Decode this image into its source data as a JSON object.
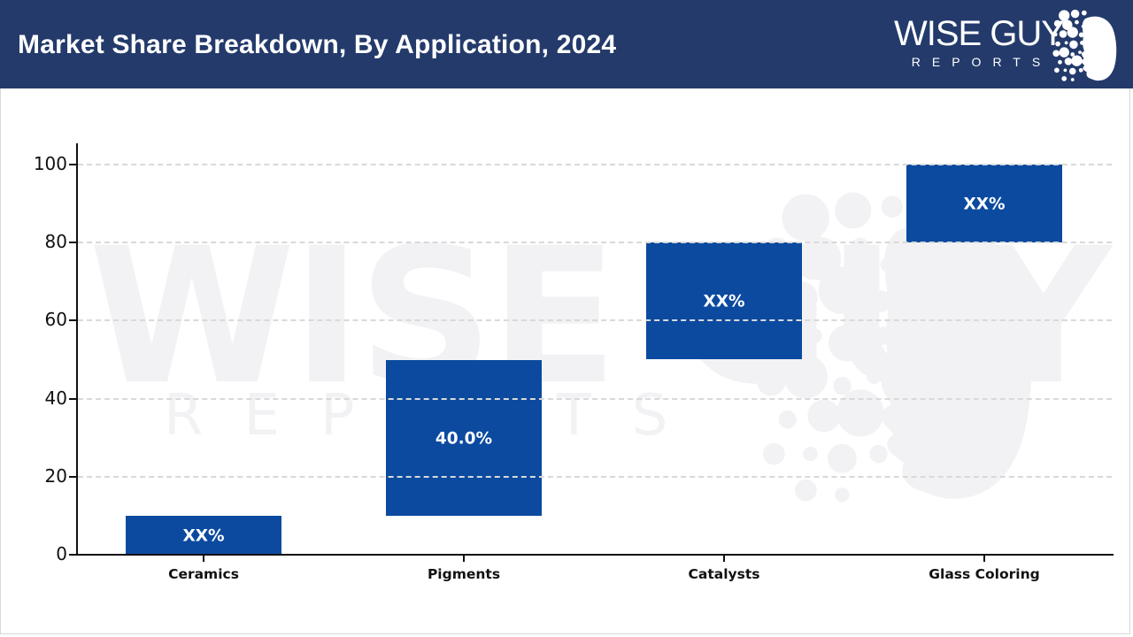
{
  "header": {
    "title": "Market Share Breakdown, By Application, 2024",
    "logo": {
      "brand": "WISE GUY",
      "sub": "REPORTS"
    }
  },
  "watermark": {
    "brand": "WISE GUY",
    "sub": "REPORTS"
  },
  "colors": {
    "header_bg": "#233A6B",
    "bar": "#0B4A9F",
    "grid": "#D9D9D9",
    "axis": "#111111",
    "bar_label": "#FFFFFF",
    "watermark": "#F2F2F5"
  },
  "chart_data": {
    "type": "bar",
    "subtype": "waterfall",
    "title": "Market Share Breakdown, By Application, 2024",
    "xlabel": "",
    "ylabel": "",
    "ylim": [
      0,
      100
    ],
    "yticks": [
      0,
      20,
      40,
      60,
      80,
      100
    ],
    "grid": "horizontal-dashed",
    "legend": "none",
    "categories": [
      "Ceramics",
      "Pigments",
      "Catalysts",
      "Glass Coloring"
    ],
    "segments": [
      {
        "category": "Ceramics",
        "start": 0,
        "end": 10,
        "label": "XX%"
      },
      {
        "category": "Pigments",
        "start": 10,
        "end": 50,
        "label": "40.0%"
      },
      {
        "category": "Catalysts",
        "start": 50,
        "end": 80,
        "label": "XX%"
      },
      {
        "category": "Glass Coloring",
        "start": 80,
        "end": 100,
        "label": "XX%"
      }
    ]
  }
}
